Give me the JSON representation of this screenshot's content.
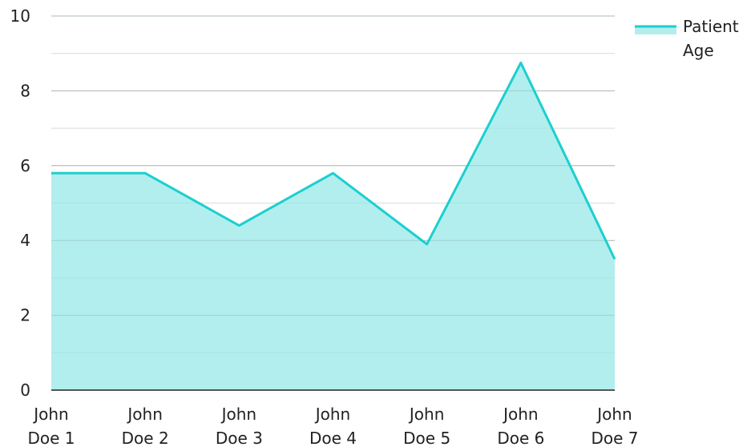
{
  "chart_data": {
    "type": "area",
    "categories": [
      [
        "John",
        "Doe 1"
      ],
      [
        "John",
        "Doe 2"
      ],
      [
        "John",
        "Doe 3"
      ],
      [
        "John",
        "Doe 4"
      ],
      [
        "John",
        "Doe 5"
      ],
      [
        "John",
        "Doe 6"
      ],
      [
        "John",
        "Doe 7"
      ]
    ],
    "series": [
      {
        "name": "Patient Age",
        "values": [
          5.8,
          5.8,
          4.4,
          5.8,
          3.9,
          8.75,
          3.5
        ],
        "line_color": "#1ccfcf",
        "fill_color": "#b2eeee"
      }
    ],
    "y_ticks": [
      "0",
      "2",
      "4",
      "6",
      "8",
      "10"
    ],
    "ylim": [
      0,
      10
    ],
    "grid": true,
    "legend": {
      "position": "top-right",
      "label_lines": [
        "Patient",
        "Age"
      ]
    },
    "title": "",
    "xlabel": "",
    "ylabel": ""
  }
}
